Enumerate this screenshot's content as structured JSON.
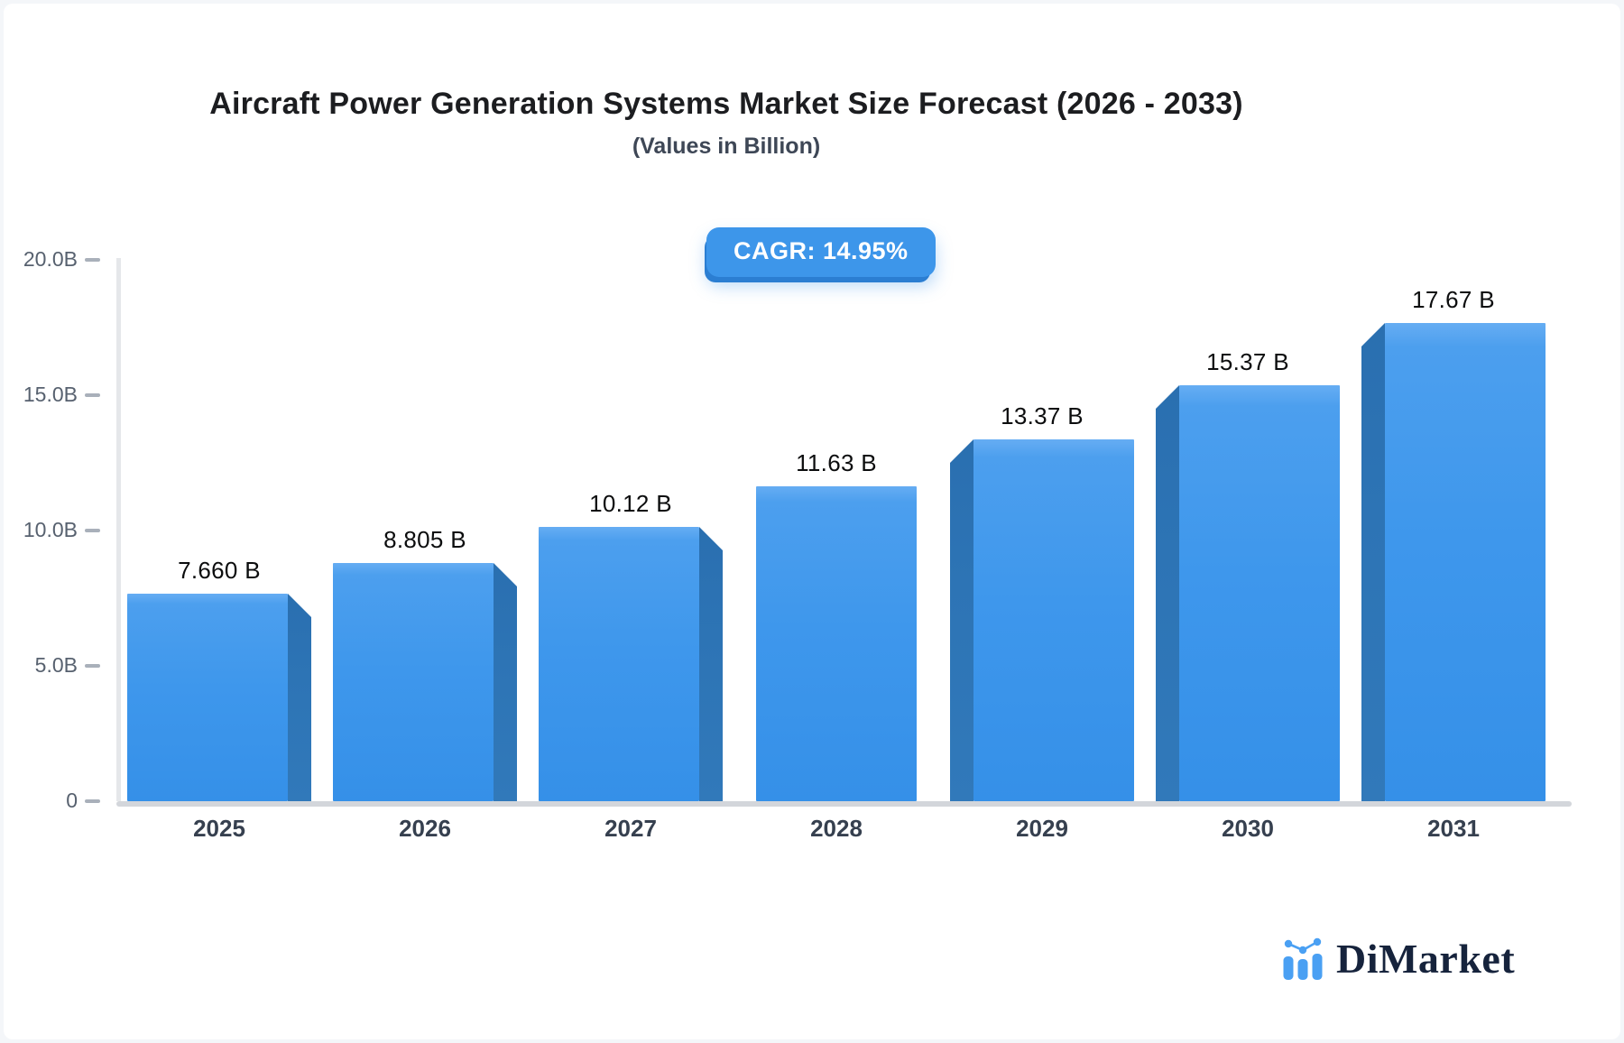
{
  "header": {
    "title": "Aircraft Power Generation Systems Market Size Forecast (2026 - 2033)",
    "subtitle": "(Values in Billion)",
    "cagr_badge": "CAGR: 14.95%"
  },
  "colors": {
    "badge_bg": "#3d96ea",
    "badge_shadow": "#2b7ed2",
    "bar_face": "#3e97ec",
    "bar_side": "#2d74b5",
    "axis_line": "#e5e7ea",
    "baseline": "#d3d6db",
    "tick_label": "#57616f",
    "logo_text": "#16233c",
    "logo_accent": "#4aa0f3"
  },
  "chart_data": {
    "type": "bar",
    "title": "Aircraft Power Generation Systems Market Size Forecast (2026 - 2033)",
    "subtitle": "(Values in Billion)",
    "annotation": "CAGR: 14.95%",
    "categories": [
      "2025",
      "2026",
      "2027",
      "2028",
      "2029",
      "2030",
      "2031"
    ],
    "values": [
      7.66,
      8.805,
      10.12,
      11.63,
      13.37,
      15.37,
      17.67
    ],
    "value_labels": [
      "7.660 B",
      "8.805 B",
      "10.12 B",
      "11.63 B",
      "13.37 B",
      "15.37 B",
      "17.67 B"
    ],
    "unit": "Billion",
    "ylim": [
      0,
      20
    ],
    "yticks": [
      {
        "label": "20.0B",
        "value": 20
      },
      {
        "label": "15.0B",
        "value": 15
      },
      {
        "label": "10.0B",
        "value": 10
      },
      {
        "label": "5.0B",
        "value": 5
      },
      {
        "label": "0",
        "value": 0
      }
    ],
    "grid": false,
    "legend": false
  },
  "logo": {
    "text": "DiMarket"
  }
}
